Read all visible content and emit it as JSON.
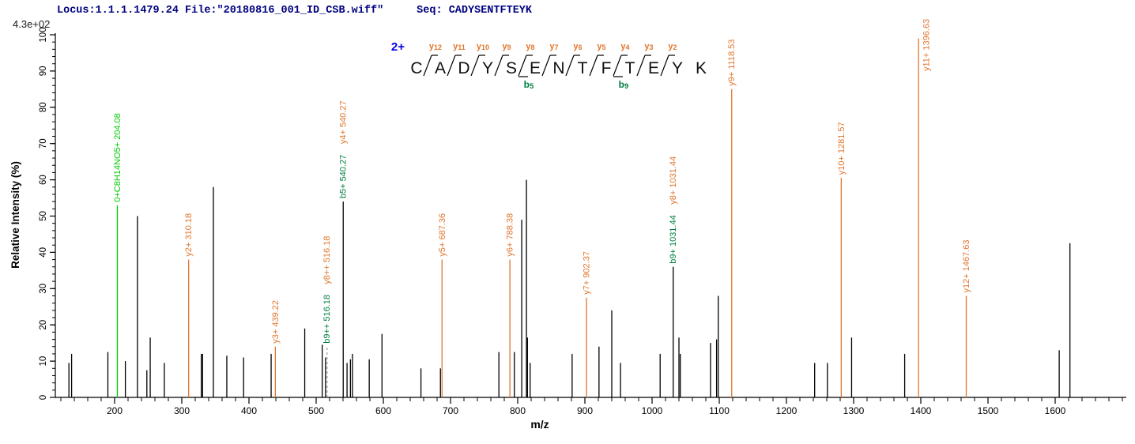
{
  "header": {
    "locus_file": "Locus:1.1.1.1479.24 File:\"20180816_001_ID_CSB.wiff\"",
    "seq_label": "Seq:",
    "seq_value": "CADYSENTFTEYK"
  },
  "max_intensity_label": "4.3e+02",
  "colors": {
    "orange": "#E0772F",
    "greenBright": "#00CC00",
    "greenDark": "#008040",
    "navy": "#000080",
    "blue": "#0000E8",
    "gray": "#A0A0A0",
    "black": "#000000"
  },
  "peptide": {
    "charge": "2+",
    "residues": [
      "C",
      "A",
      "D",
      "Y",
      "S",
      "E",
      "N",
      "T",
      "F",
      "T",
      "E",
      "Y",
      "K"
    ],
    "y_labels": [
      "y12",
      "y11",
      "y10",
      "y9",
      "y8",
      "y7",
      "y6",
      "y5",
      "y4",
      "y3",
      "y2"
    ],
    "b_labels": [
      {
        "text": "b5",
        "gap": 5
      },
      {
        "text": "b9",
        "gap": 9
      }
    ]
  },
  "chart_data": {
    "type": "bar",
    "title": "MS/MS fragmentation spectrum",
    "xlabel": "m/z",
    "ylabel": "Relative  Intensity (%)",
    "x_range": [
      112,
      1706
    ],
    "y_range": [
      0,
      100
    ],
    "x_major_ticks": [
      200,
      300,
      400,
      500,
      600,
      700,
      800,
      900,
      1000,
      1100,
      1200,
      1300,
      1400,
      1500,
      1600
    ],
    "x_minor_tick_step": 20,
    "y_major_ticks": [
      0,
      10,
      20,
      30,
      40,
      50,
      60,
      70,
      80,
      90,
      100
    ],
    "y_minor_tick_step": 2,
    "grid": false,
    "legend": "none",
    "annotated_peaks": [
      {
        "mz": 204.08,
        "intensity": 53,
        "color": "greenBright",
        "labels": [
          {
            "text": "0+C8H14NO5+ 204.08",
            "color": "greenBright"
          }
        ]
      },
      {
        "mz": 310.18,
        "intensity": 38,
        "color": "orange",
        "labels": [
          {
            "text": "y2+ 310.18",
            "color": "orange"
          }
        ]
      },
      {
        "mz": 439.22,
        "intensity": 14,
        "color": "orange",
        "labels": [
          {
            "text": "y3+ 439.22",
            "color": "orange"
          }
        ]
      },
      {
        "mz": 516.18,
        "intensity": 14,
        "color": "gray",
        "style": "dashed",
        "labels": [
          {
            "text": "b9++ 516.18",
            "color": "greenDark"
          },
          {
            "text": "y8++ 516.18",
            "color": "orange"
          }
        ]
      },
      {
        "mz": 540.27,
        "intensity": 54,
        "color": "black",
        "labels": [
          {
            "text": "b5+ 540.27",
            "color": "greenDark"
          },
          {
            "text": "y4+ 540.27",
            "color": "orange"
          }
        ]
      },
      {
        "mz": 687.36,
        "intensity": 38,
        "color": "orange",
        "labels": [
          {
            "text": "y5+ 687.36",
            "color": "orange"
          }
        ]
      },
      {
        "mz": 788.38,
        "intensity": 38,
        "color": "orange",
        "labels": [
          {
            "text": "y6+ 788.38",
            "color": "orange"
          }
        ]
      },
      {
        "mz": 902.37,
        "intensity": 27.5,
        "color": "orange",
        "labels": [
          {
            "text": "y7+ 902.37",
            "color": "orange"
          }
        ]
      },
      {
        "mz": 1031.44,
        "intensity": 36,
        "color": "black",
        "labels": [
          {
            "text": "b9+ 1031.44",
            "color": "greenDark"
          },
          {
            "text": "y8+ 1031.44",
            "color": "orange"
          }
        ]
      },
      {
        "mz": 1118.53,
        "intensity": 85,
        "color": "orange",
        "labels": [
          {
            "text": "y9+ 1118.53",
            "color": "orange"
          }
        ]
      },
      {
        "mz": 1281.57,
        "intensity": 60.5,
        "color": "orange",
        "labels": [
          {
            "text": "y10+ 1281.57",
            "color": "orange"
          }
        ]
      },
      {
        "mz": 1396.63,
        "intensity": 99,
        "color": "orange",
        "label_anchor_y": 90,
        "label_dx": 10,
        "labels": [
          {
            "text": "y11+ 1396.63",
            "color": "orange"
          }
        ]
      },
      {
        "mz": 1467.63,
        "intensity": 28,
        "color": "orange",
        "labels": [
          {
            "text": "y12+ 1467.63",
            "color": "orange"
          }
        ]
      }
    ],
    "unlabeled_peaks": [
      [
        132,
        9.5
      ],
      [
        136,
        12
      ],
      [
        190,
        12.5
      ],
      [
        216,
        10
      ],
      [
        234,
        50
      ],
      [
        248,
        7.5
      ],
      [
        253,
        16.5
      ],
      [
        274,
        9.5
      ],
      [
        329,
        12
      ],
      [
        331,
        12
      ],
      [
        347,
        58
      ],
      [
        367,
        11.5
      ],
      [
        392,
        11
      ],
      [
        433,
        12
      ],
      [
        483,
        19
      ],
      [
        509,
        14.5
      ],
      [
        514,
        11
      ],
      [
        546,
        9.5
      ],
      [
        551,
        10.5
      ],
      [
        554,
        12
      ],
      [
        579,
        10.5
      ],
      [
        598,
        17.5
      ],
      [
        656,
        8
      ],
      [
        685,
        8
      ],
      [
        772,
        12.5
      ],
      [
        795,
        12.5
      ],
      [
        806,
        49
      ],
      [
        813,
        60
      ],
      [
        814.5,
        16.5
      ],
      [
        818.5,
        9.5
      ],
      [
        881,
        12
      ],
      [
        921,
        14
      ],
      [
        940,
        24
      ],
      [
        953,
        9.5
      ],
      [
        1012,
        12
      ],
      [
        1040,
        16.5
      ],
      [
        1042,
        12
      ],
      [
        1087,
        15
      ],
      [
        1096,
        16
      ],
      [
        1098.5,
        28
      ],
      [
        1242,
        9.5
      ],
      [
        1261,
        9.5
      ],
      [
        1297,
        16.5
      ],
      [
        1376,
        12
      ],
      [
        1606,
        13
      ],
      [
        1622,
        42.5
      ]
    ]
  }
}
